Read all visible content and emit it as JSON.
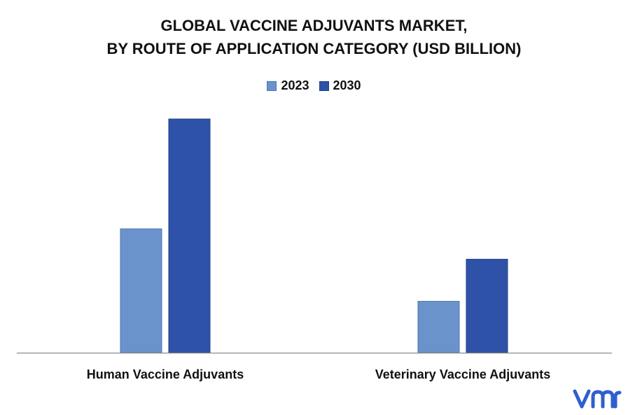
{
  "chart_data": {
    "type": "bar",
    "title_lines": [
      "GLOBAL VACCINE ADJUVANTS MARKET,",
      "BY ROUTE OF APPLICATION CATEGORY (USD BILLION)"
    ],
    "categories": [
      "Human Vaccine Adjuvants",
      "Veterinary Vaccine Adjuvants"
    ],
    "series": [
      {
        "name": "2023",
        "values": [
          0.53,
          0.22
        ],
        "color": "#6A93CB"
      },
      {
        "name": "2030",
        "values": [
          1.0,
          0.4
        ],
        "color": "#2E52A8"
      }
    ],
    "ylim": [
      0,
      1.0
    ],
    "grid": false,
    "legend_position": "top-center",
    "xlabel": "",
    "ylabel": ""
  },
  "logo": {
    "icon": "vmr-logo-icon",
    "color": "#2F5FCF"
  }
}
